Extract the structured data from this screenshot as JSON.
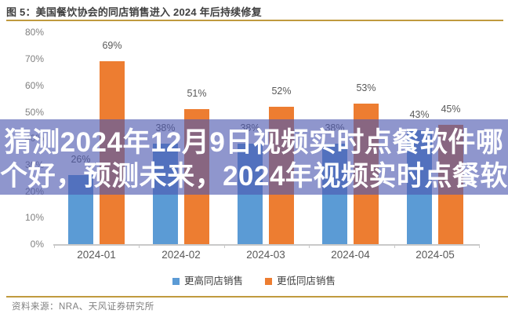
{
  "header": {
    "title": "图 5：美国餐饮协会的同店销售进入 2024 年后持续修复"
  },
  "overlay": {
    "line1": "猜测2024年12月9日视频实时点餐软件哪",
    "line2": "个好，预测未来，2024年视频实时点餐软"
  },
  "footer": {
    "source": "资料来源：NRA、天风证券研究所"
  },
  "colors": {
    "higher_series": "#5B9BD5",
    "lower_series": "#ED7D31",
    "overlay_band": "rgba(77,88,176,0.63)",
    "gold_rule": "#C09A3E",
    "axis": "#c9c9c9",
    "label_text": "#595959"
  },
  "chart_data": {
    "type": "bar",
    "title": "图 5：美国餐饮协会的同店销售进入 2024 年后持续修复",
    "categories": [
      "2024-01",
      "2024-02",
      "2024-03",
      "2024-04",
      "2024-05"
    ],
    "series": [
      {
        "name": "更高同店销售",
        "color": "#5B9BD5",
        "values": [
          26,
          38,
          38,
          38,
          43
        ],
        "labels": [
          "26%",
          "38%",
          "38%",
          "38%",
          "43%"
        ]
      },
      {
        "name": "更低同店销售",
        "color": "#ED7D31",
        "values": [
          69,
          51,
          52,
          53,
          45
        ],
        "labels": [
          "69%",
          "51%",
          "52%",
          "53%",
          "45%"
        ]
      }
    ],
    "xlabel": "",
    "ylabel": "",
    "ylim": [
      0,
      80
    ],
    "y_ticks": [
      "0%",
      "10%",
      "20%",
      "30%",
      "40%",
      "50%",
      "60%",
      "70%",
      "80%"
    ],
    "grid": false,
    "legend_position": "bottom"
  }
}
